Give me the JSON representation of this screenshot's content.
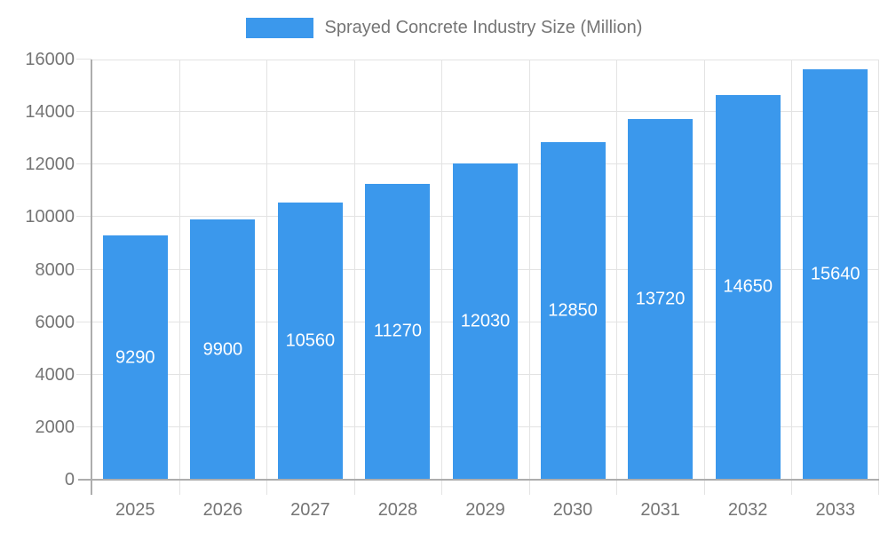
{
  "chart_data": {
    "type": "bar",
    "categories": [
      "2025",
      "2026",
      "2027",
      "2028",
      "2029",
      "2030",
      "2031",
      "2032",
      "2033"
    ],
    "series": [
      {
        "name": "Sprayed Concrete Industry Size (Million)",
        "values": [
          9290,
          9900,
          10560,
          11270,
          12030,
          12850,
          13720,
          14650,
          15640
        ]
      }
    ],
    "value_labels": "inside-middle",
    "xlabel": "",
    "ylabel": "",
    "ylim": [
      0,
      16000
    ],
    "yticks": [
      0,
      2000,
      4000,
      6000,
      8000,
      10000,
      12000,
      14000,
      16000
    ],
    "grid": true,
    "legend_position": "top",
    "colors": {
      "bar": "#3B98EC",
      "bar_label": "#FFFFFF",
      "axis_text": "#757575",
      "grid_line": "#E3E3E3",
      "axis_line": "#ADADAD",
      "background": "#FFFFFF"
    }
  }
}
